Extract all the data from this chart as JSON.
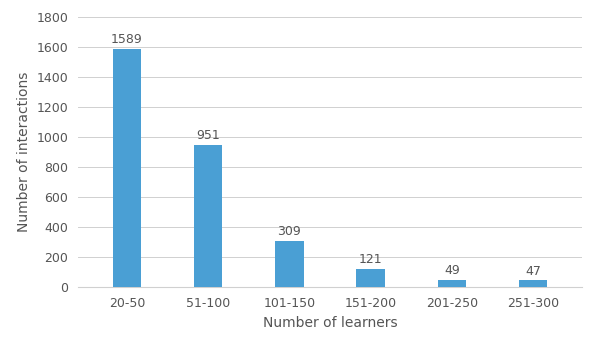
{
  "categories": [
    "20-50",
    "51-100",
    "101-150",
    "151-200",
    "201-250",
    "251-300"
  ],
  "values": [
    1589,
    951,
    309,
    121,
    49,
    47
  ],
  "bar_color": "#4a9fd4",
  "xlabel": "Number of learners",
  "ylabel": "Number of interactions",
  "ylim": [
    0,
    1800
  ],
  "yticks": [
    0,
    200,
    400,
    600,
    800,
    1000,
    1200,
    1400,
    1600,
    1800
  ],
  "bar_width": 0.35,
  "background_color": "#ffffff",
  "grid_color": "#d0d0d0",
  "label_fontsize": 10,
  "tick_fontsize": 9,
  "annotation_fontsize": 9
}
